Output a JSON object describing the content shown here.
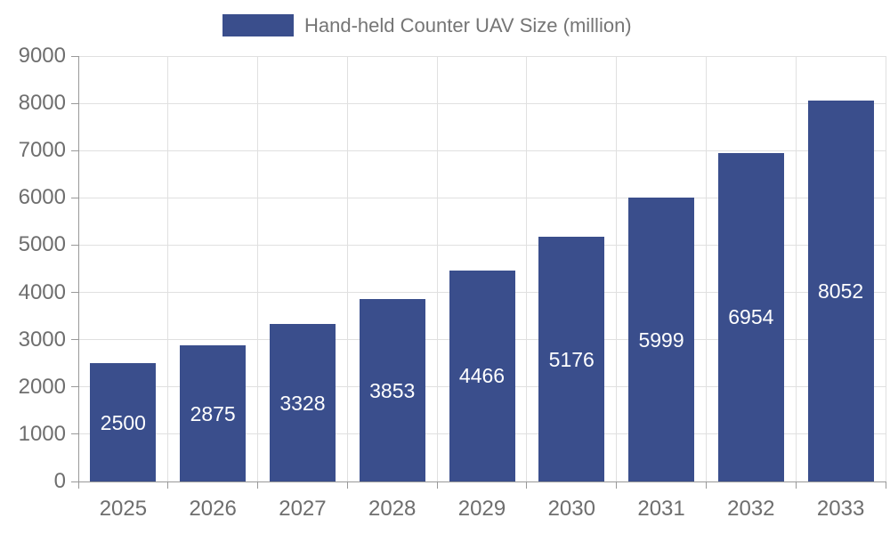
{
  "chart_data": {
    "type": "bar",
    "title": "Hand-held Counter UAV Size (million)",
    "categories": [
      "2025",
      "2026",
      "2027",
      "2028",
      "2029",
      "2030",
      "2031",
      "2032",
      "2033"
    ],
    "values": [
      2500,
      2875,
      3328,
      3853,
      4466,
      5176,
      5999,
      6954,
      8052
    ],
    "xlabel": "",
    "ylabel": "",
    "ylim": [
      0,
      9000
    ],
    "ytick_step": 1000,
    "ytick_labels": [
      "0",
      "1000",
      "2000",
      "3000",
      "4000",
      "5000",
      "6000",
      "7000",
      "8000",
      "9000"
    ],
    "grid": true,
    "legend_position": "top",
    "value_labels": "inside-center",
    "colors": {
      "bar": "#3A4E8C",
      "bar_value_text": "#FFFFFF",
      "axis_line": "#999999",
      "gridline": "#E0E0E0",
      "tick_label": "#6E6E6E",
      "legend_text": "#757575"
    }
  }
}
